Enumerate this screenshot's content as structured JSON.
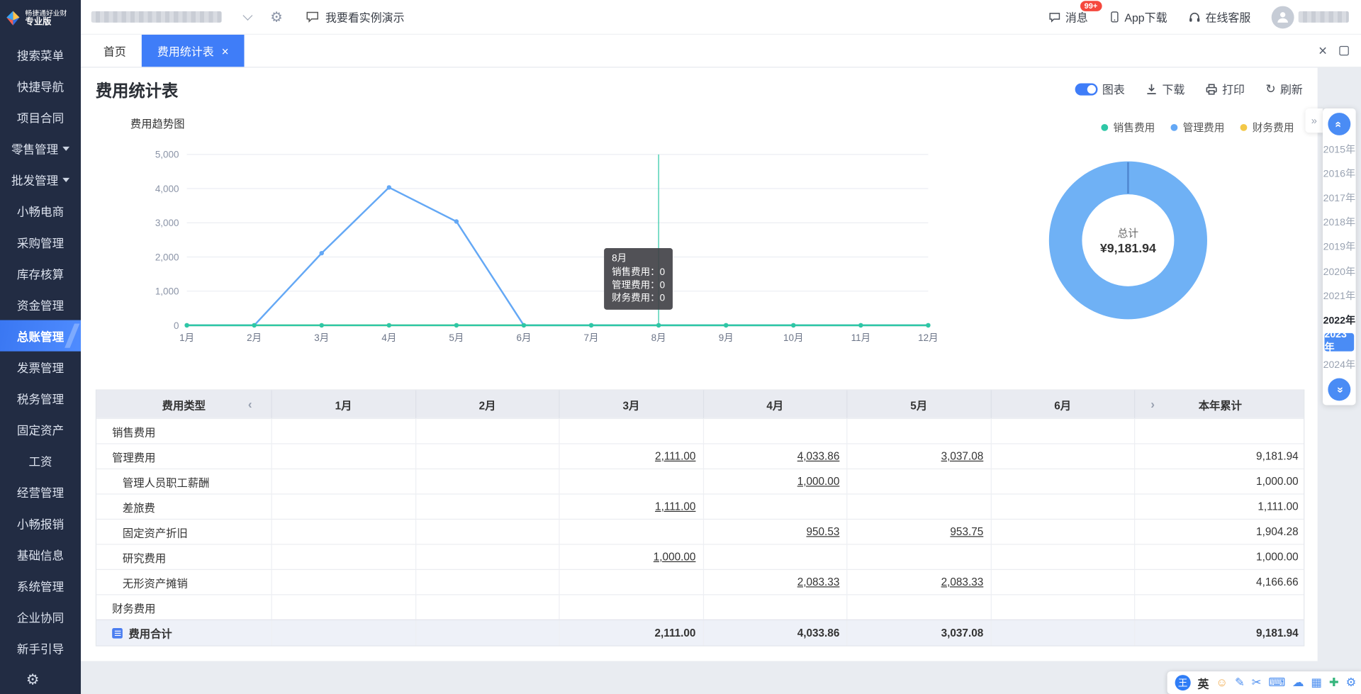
{
  "app": {
    "brand_line1": "畅捷通好业财",
    "brand_line2": "专业版"
  },
  "colors": {
    "accent": "#3f7df8",
    "sidebar_bg": "#222c43",
    "badge_red": "#f5483d"
  },
  "topbar": {
    "demo_text": "我要看实例演示",
    "messages_label": "消息",
    "messages_badge": "99+",
    "app_download_label": "App下载",
    "support_label": "在线客服"
  },
  "tabs": [
    {
      "label": "首页",
      "active": false,
      "closable": false
    },
    {
      "label": "费用统计表",
      "active": true,
      "closable": true
    }
  ],
  "page": {
    "title": "费用统计表",
    "chart_toggle_label": "图表",
    "download_label": "下载",
    "print_label": "打印",
    "refresh_label": "刷新"
  },
  "sidebar": {
    "items": [
      {
        "label": "搜索菜单"
      },
      {
        "label": "快捷导航"
      },
      {
        "label": "项目合同"
      },
      {
        "label": "零售管理",
        "expandable": true
      },
      {
        "label": "批发管理",
        "expandable": true
      },
      {
        "label": "小畅电商"
      },
      {
        "label": "采购管理"
      },
      {
        "label": "库存核算"
      },
      {
        "label": "资金管理"
      },
      {
        "label": "总账管理",
        "active": true
      },
      {
        "label": "发票管理"
      },
      {
        "label": "税务管理"
      },
      {
        "label": "固定资产"
      },
      {
        "label": "工资"
      },
      {
        "label": "经营管理"
      },
      {
        "label": "小畅报销"
      },
      {
        "label": "基础信息"
      },
      {
        "label": "系统管理"
      },
      {
        "label": "企业协同"
      },
      {
        "label": "新手引导"
      }
    ]
  },
  "chart_data": [
    {
      "type": "line",
      "title": "费用趋势图",
      "categories": [
        "1月",
        "2月",
        "3月",
        "4月",
        "5月",
        "6月",
        "7月",
        "8月",
        "9月",
        "10月",
        "11月",
        "12月"
      ],
      "series": [
        {
          "name": "销售费用",
          "color": "#2ec7a6",
          "values": [
            0,
            0,
            0,
            0,
            0,
            0,
            0,
            0,
            0,
            0,
            0,
            0
          ]
        },
        {
          "name": "管理费用",
          "color": "#64a8f5",
          "values": [
            0,
            0,
            2111.0,
            4033.86,
            3037.08,
            0,
            0,
            0,
            0,
            0,
            0,
            0
          ]
        },
        {
          "name": "财务费用",
          "color": "#f3c848",
          "values": [
            0,
            0,
            0,
            0,
            0,
            0,
            0,
            0,
            0,
            0,
            0,
            0
          ]
        }
      ],
      "ylim": [
        0,
        5000
      ],
      "ytick_labels": [
        "0",
        "1,000",
        "2,000",
        "3,000",
        "4,000",
        "5,000"
      ],
      "grid": true,
      "legend_position": "top-right",
      "tooltip": {
        "title": "8月",
        "lines": [
          "销售费用：0",
          "管理费用：0",
          "财务费用：0"
        ],
        "category_index": 7
      }
    },
    {
      "type": "pie",
      "donut": true,
      "center_label": "总计",
      "center_value": "¥9,181.94",
      "slices": [
        {
          "name": "管理费用",
          "value": 9181.94,
          "color": "#6fb1f5"
        }
      ]
    }
  ],
  "year_panel": {
    "handle_glyph": "»",
    "years": [
      {
        "label": "2015年"
      },
      {
        "label": "2016年"
      },
      {
        "label": "2017年"
      },
      {
        "label": "2018年"
      },
      {
        "label": "2019年"
      },
      {
        "label": "2020年"
      },
      {
        "label": "2021年"
      },
      {
        "label": "2022年",
        "highlight": true
      },
      {
        "label": "2023年",
        "selected": true
      },
      {
        "label": "2024年"
      }
    ]
  },
  "table": {
    "columns": [
      "费用类型",
      "1月",
      "2月",
      "3月",
      "4月",
      "5月",
      "6月",
      "本年累计"
    ],
    "rows": [
      {
        "label": "销售费用",
        "indent": 0,
        "months": [
          "",
          "",
          "",
          "",
          "",
          ""
        ],
        "total": ""
      },
      {
        "label": "管理费用",
        "indent": 0,
        "months": [
          "",
          "",
          "2,111.00",
          "4,033.86",
          "3,037.08",
          ""
        ],
        "total": "9,181.94"
      },
      {
        "label": "管理人员职工薪酬",
        "indent": 1,
        "months": [
          "",
          "",
          "",
          "1,000.00",
          "",
          ""
        ],
        "total": "1,000.00"
      },
      {
        "label": "差旅费",
        "indent": 1,
        "months": [
          "",
          "",
          "1,111.00",
          "",
          "",
          ""
        ],
        "total": "1,111.00"
      },
      {
        "label": "固定资产折旧",
        "indent": 1,
        "months": [
          "",
          "",
          "",
          "950.53",
          "953.75",
          ""
        ],
        "total": "1,904.28"
      },
      {
        "label": "研究费用",
        "indent": 1,
        "months": [
          "",
          "",
          "1,000.00",
          "",
          "",
          ""
        ],
        "total": "1,000.00"
      },
      {
        "label": "无形资产摊销",
        "indent": 1,
        "months": [
          "",
          "",
          "",
          "2,083.33",
          "2,083.33",
          ""
        ],
        "total": "4,166.66"
      },
      {
        "label": "财务费用",
        "indent": 0,
        "months": [
          "",
          "",
          "",
          "",
          "",
          ""
        ],
        "total": ""
      }
    ],
    "footer": {
      "label": "费用合计",
      "months": [
        "",
        "",
        "2,111.00",
        "4,033.86",
        "3,037.08",
        ""
      ],
      "total": "9,181.94"
    }
  },
  "ime": {
    "badge_glyph": "王",
    "lang_label": "英",
    "icons": [
      {
        "name": "emoji-icon",
        "glyph": "☺",
        "color": "#f0a94a"
      },
      {
        "name": "pen-icon",
        "glyph": "✎",
        "color": "#4a8df0"
      },
      {
        "name": "scissors-icon",
        "glyph": "✂",
        "color": "#4a8df0"
      },
      {
        "name": "keyboard-icon",
        "glyph": "⌨",
        "color": "#4a8df0"
      },
      {
        "name": "cloud-icon",
        "glyph": "☁",
        "color": "#4a8df0"
      },
      {
        "name": "grid-icon",
        "glyph": "▦",
        "color": "#4a8df0"
      },
      {
        "name": "medical-icon",
        "glyph": "✚",
        "color": "#35b57c"
      },
      {
        "name": "gear-icon",
        "glyph": "⚙",
        "color": "#4a8df0"
      }
    ]
  }
}
